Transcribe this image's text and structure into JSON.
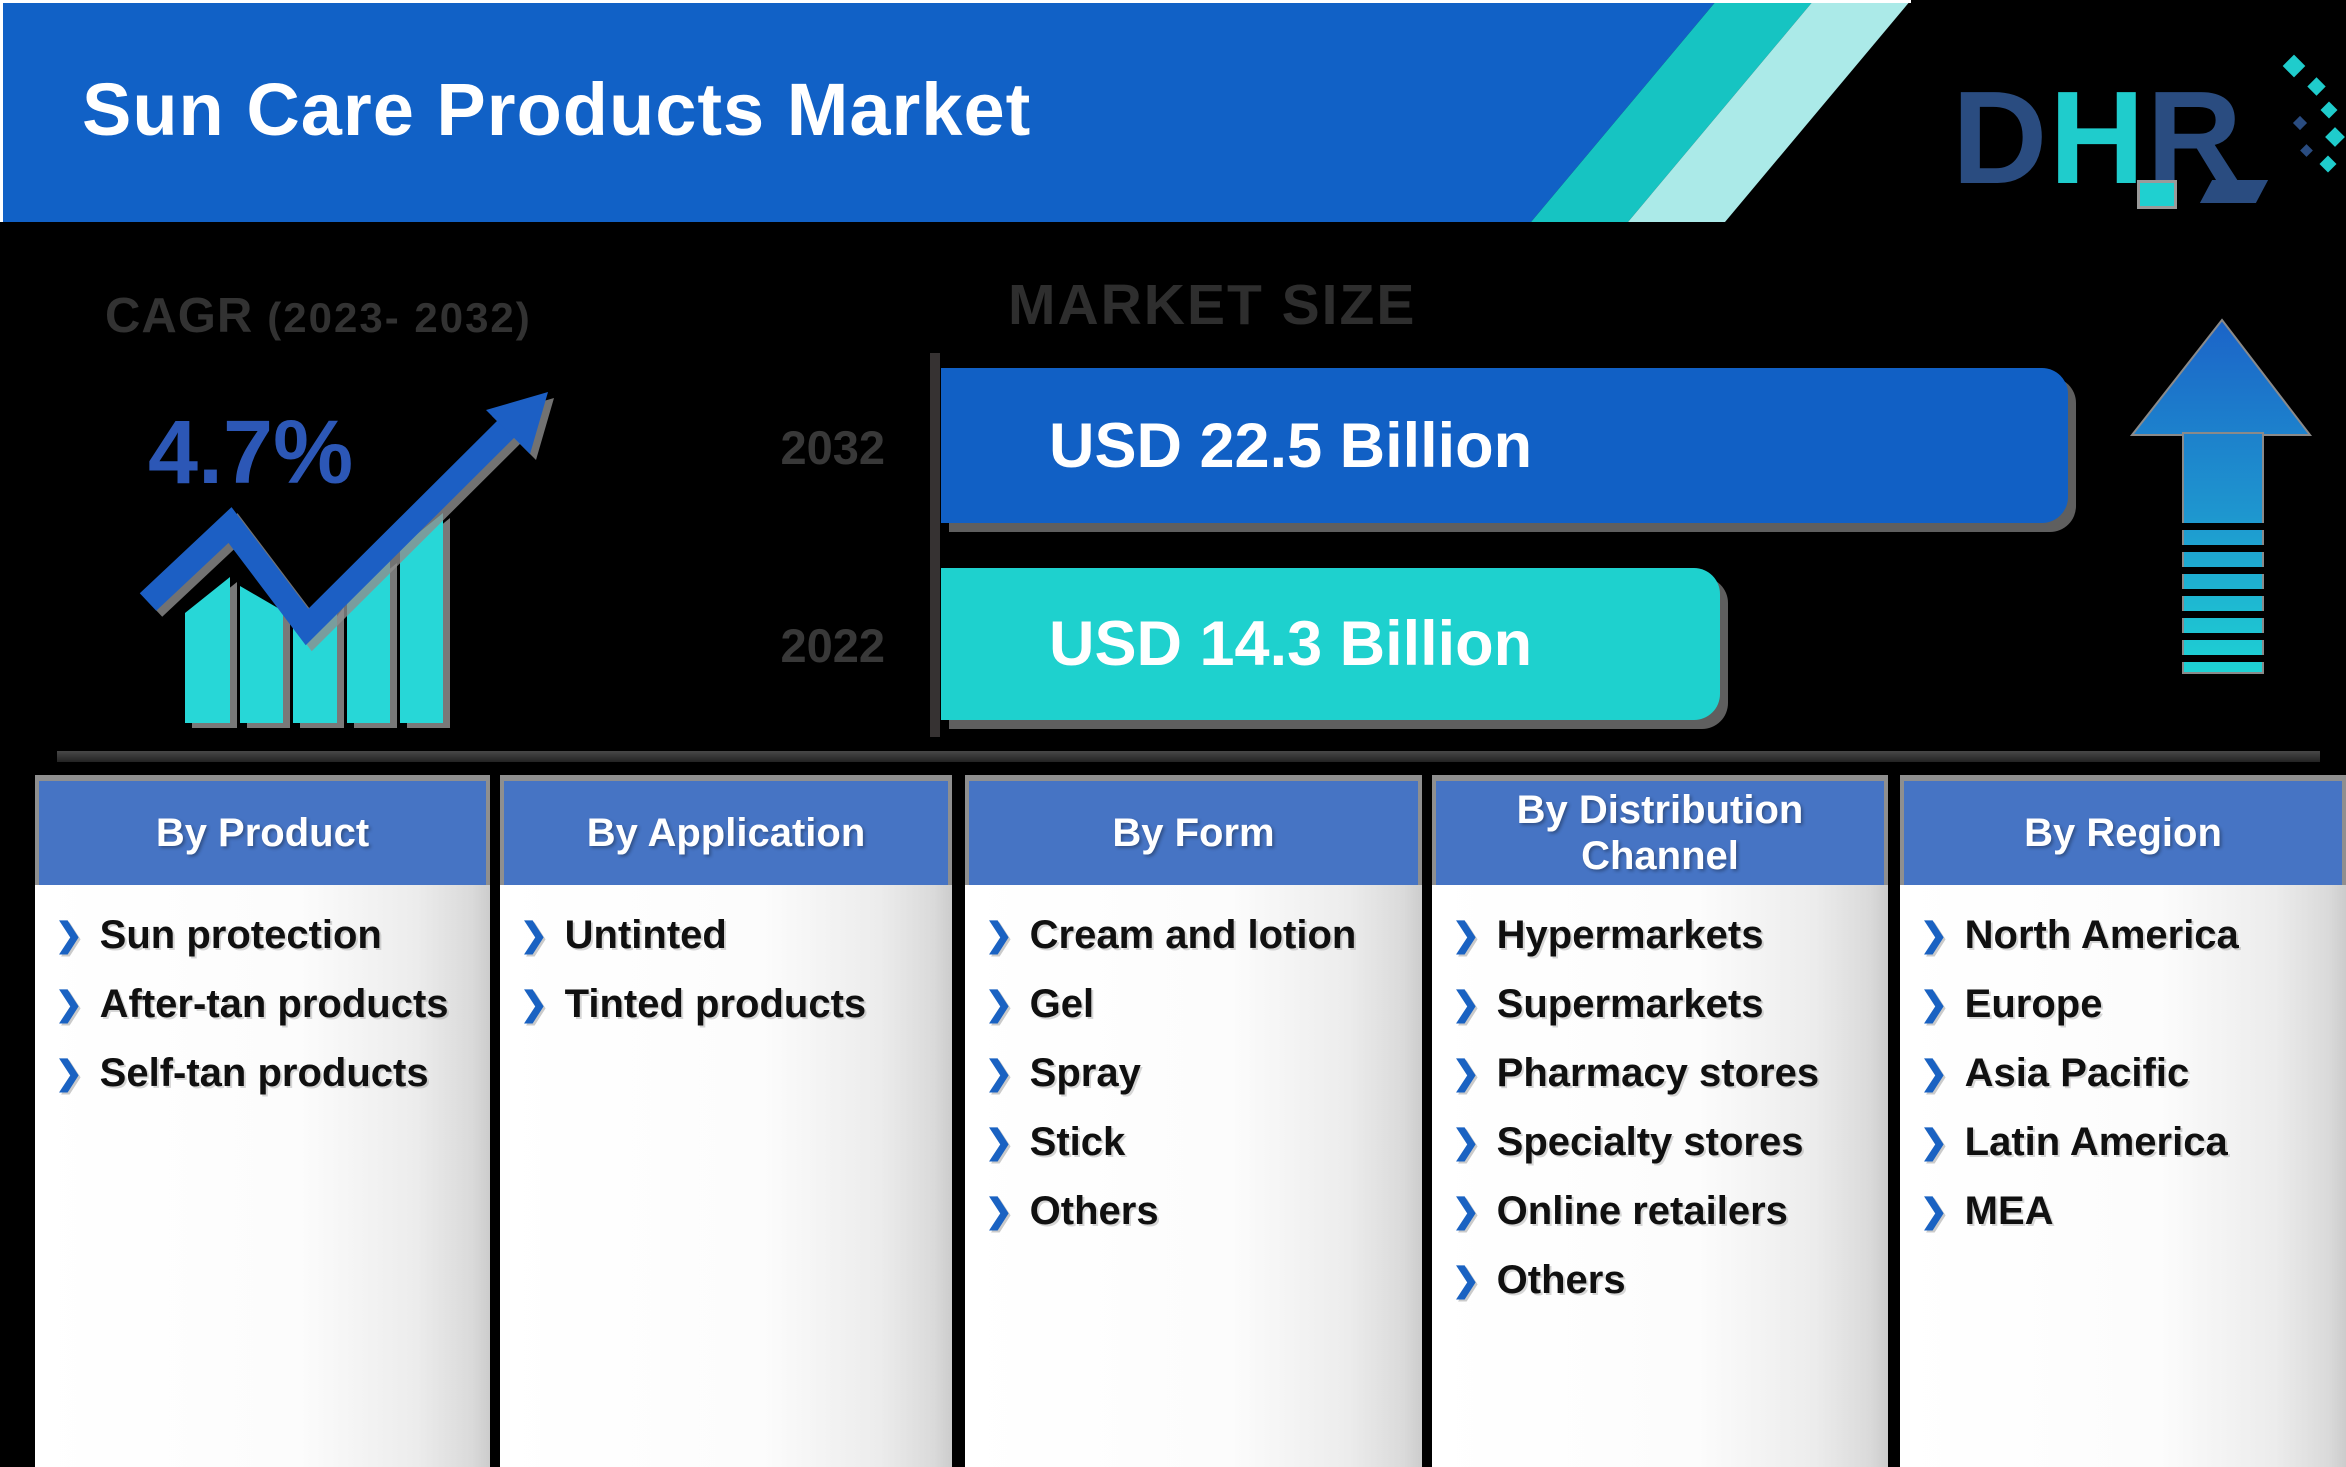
{
  "page": {
    "title": "Sun Care Products Market"
  },
  "logo": {
    "d": "D",
    "h": "H",
    "r": "R"
  },
  "cagr": {
    "label": "CAGR",
    "range": "(2023- 2032)",
    "value": "4.7%"
  },
  "market_size": {
    "title": "MARKET SIZE",
    "rows": [
      {
        "year": "2032",
        "value": "USD 22.5 Billion"
      },
      {
        "year": "2022",
        "value": "USD 14.3 Billion"
      }
    ]
  },
  "chart_data": {
    "type": "bar",
    "orientation": "horizontal",
    "title": "MARKET SIZE",
    "categories": [
      "2032",
      "2022"
    ],
    "values": [
      22.5,
      14.3
    ],
    "unit": "USD Billion",
    "bar_labels": [
      "USD 22.5 Billion",
      "USD 14.3 Billion"
    ],
    "bar_colors": [
      "#1160c5",
      "#1ed1ce"
    ],
    "annotations": {
      "cagr_pct": 4.7,
      "cagr_period": "2023-2032"
    },
    "legend": "none",
    "grid": false
  },
  "segments": {
    "columns": [
      {
        "title": "By Product",
        "items": [
          "Sun protection",
          "After-tan products",
          "Self-tan products"
        ]
      },
      {
        "title": "By Application",
        "items": [
          "Untinted",
          "Tinted products"
        ]
      },
      {
        "title": "By Form",
        "items": [
          "Cream and lotion",
          "Gel",
          "Spray",
          "Stick",
          "Others"
        ]
      },
      {
        "title": "By Distribution Channel",
        "items": [
          "Hypermarkets",
          "Supermarkets",
          "Pharmacy stores",
          "Specialty stores",
          "Online retailers",
          "Others"
        ]
      },
      {
        "title": "By Region",
        "items": [
          "North America",
          "Europe",
          "Asia Pacific",
          "Latin America",
          "MEA"
        ]
      }
    ]
  },
  "colors": {
    "header_blue": "#1161c6",
    "bar_blue": "#1160c5",
    "bar_teal": "#1ed1ce",
    "column_header_blue": "#4674c4",
    "accent_teal_stripe": "#16c4c2",
    "accent_pale_stripe": "#abeae8",
    "cagr_value_blue": "#2c57b6",
    "muted_label_gray": "#383838",
    "chevron_blue": "#1a62c2"
  }
}
